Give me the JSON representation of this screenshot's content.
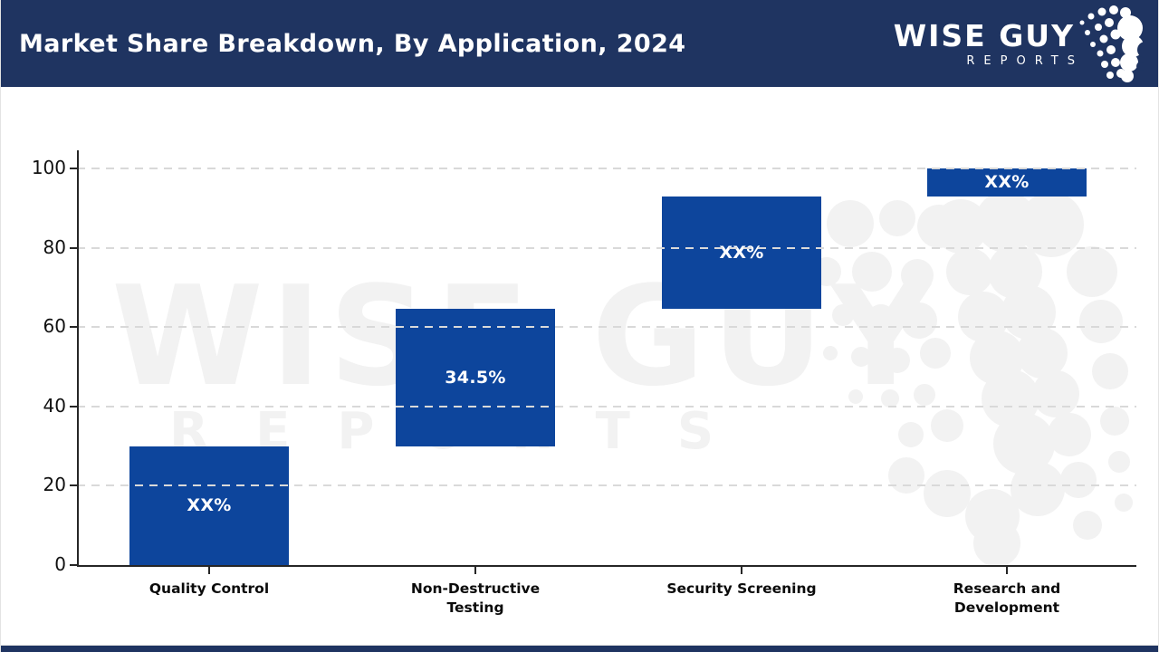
{
  "header": {
    "title": "Market Share Breakdown, By Application, 2024",
    "logo": {
      "line1": "WISE GUY",
      "line2": "REPORTS"
    }
  },
  "watermark": {
    "line1": "WISE GUY",
    "line2": "REPORTS"
  },
  "chart_data": {
    "type": "bar",
    "subtype": "waterfall",
    "title": "Market Share Breakdown, By Application, 2024",
    "categories": [
      "Quality Control",
      "Non-Destructive Testing",
      "Security Screening",
      "Research and Development"
    ],
    "category_lines": [
      [
        "Quality Control"
      ],
      [
        "Non-Destructive",
        "Testing"
      ],
      [
        "Security Screening"
      ],
      [
        "Research and",
        "Development"
      ]
    ],
    "segments": [
      {
        "category": "Quality Control",
        "start": 0,
        "end": 30,
        "label": "XX%"
      },
      {
        "category": "Non-Destructive Testing",
        "start": 30,
        "end": 64.5,
        "label": "34.5%"
      },
      {
        "category": "Security Screening",
        "start": 64.5,
        "end": 93,
        "label": "XX%"
      },
      {
        "category": "Research and Development",
        "start": 93,
        "end": 100,
        "label": "XX%"
      }
    ],
    "ylim": [
      0,
      100
    ],
    "yticks": [
      0,
      20,
      40,
      60,
      80,
      100
    ],
    "xlabel": "",
    "ylabel": "",
    "grid": "horizontal-dashed",
    "legend": "none",
    "bar_color": "#0d459c",
    "bar_label_color": "#ffffff"
  },
  "colors": {
    "header_bg": "#1f3461",
    "footer_bg": "#1f3461",
    "bar": "#0d459c",
    "grid": "#d9d9d9",
    "watermark": "#f2f2f2"
  }
}
